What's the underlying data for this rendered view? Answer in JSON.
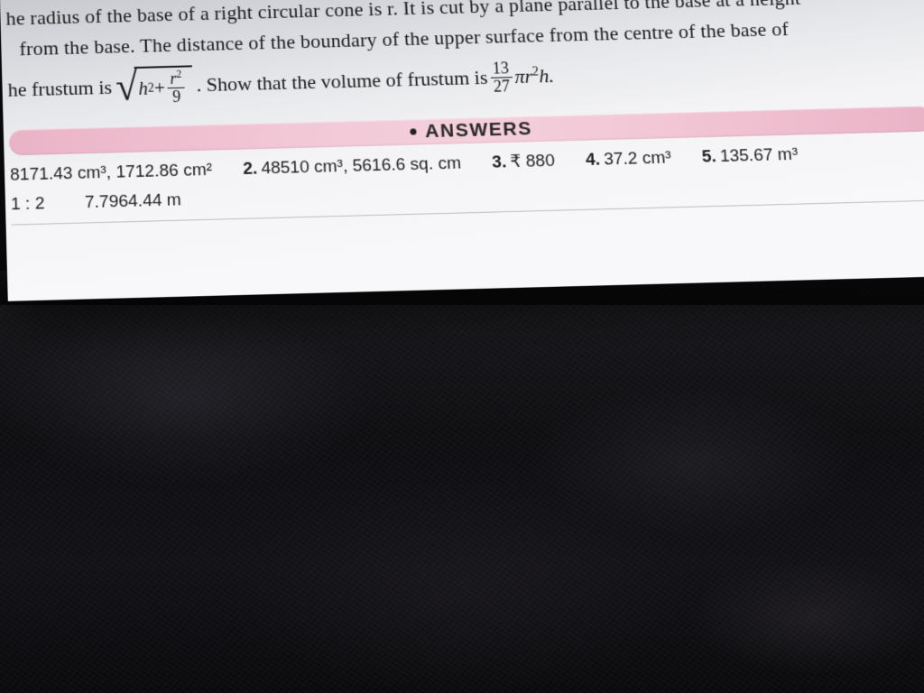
{
  "problem": {
    "line1a": "he radius of the base of a right circular cone is r. It is cut by a plane parallel to the base at a height",
    "line1b": "from the base. The distance of the boundary of the upper surface from the centre of the base of",
    "line2_pre": "he frustum is ",
    "sqrt_h2": "h",
    "sqrt_plus": " + ",
    "sqrt_num": "r",
    "sqrt_den": "9",
    "line2_mid": " . Show that the volume of frustum is ",
    "vol_num": "13",
    "vol_den": "27",
    "line2_post": " πr",
    "line2_end": "h."
  },
  "answers_label": "ANSWERS",
  "answers": {
    "a1": "8171.43 cm³, 1712.86 cm²",
    "a2n": "2.",
    "a2": "48510 cm³, 5616.6 sq. cm",
    "a3n": "3.",
    "a3": "₹ 880",
    "a4n": "4.",
    "a4": "37.2 cm³",
    "a5n": "5.",
    "a5": "135.67 m³",
    "a6": "1 : 2",
    "a7n": "7.",
    "a7": "7964.44 m"
  },
  "colors": {
    "text": "#1a1a1a",
    "bar_pink": "#f2c7d6",
    "page_bg": "#f4f4f6",
    "fabric_dark": "#0e0e11"
  }
}
